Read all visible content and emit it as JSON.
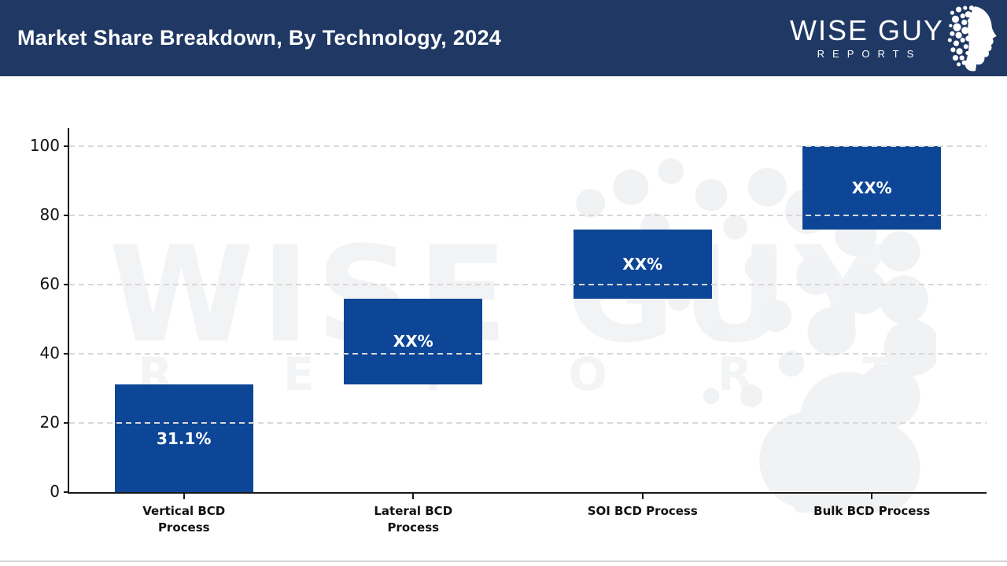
{
  "header": {
    "title": "Market Share Breakdown, By Technology, 2024",
    "bg_color": "#203864",
    "logo": {
      "line1": "WISE GUY",
      "line2": "REPORTS"
    }
  },
  "watermark": {
    "line1": "WISE GUY",
    "line2": "R E P O R T S"
  },
  "chart_data": {
    "type": "bar",
    "subtype": "waterfall (floating segment bars)",
    "title": "Market Share Breakdown, By Technology, 2024",
    "categories": [
      "Vertical BCD Process",
      "Lateral BCD Process",
      "SOI BCD Process",
      "Bulk BCD Process"
    ],
    "x_tick_display": [
      "Vertical BCD\nProcess",
      "Lateral BCD\nProcess",
      "SOI BCD Process",
      "Bulk BCD Process"
    ],
    "segments": [
      {
        "category": "Vertical BCD Process",
        "start": 0,
        "end": 31.1,
        "label": "31.1%"
      },
      {
        "category": "Lateral BCD Process",
        "start": 31.1,
        "end": 56,
        "label": "XX%"
      },
      {
        "category": "SOI BCD Process",
        "start": 56,
        "end": 76,
        "label": "XX%"
      },
      {
        "category": "Bulk BCD Process",
        "start": 76,
        "end": 100,
        "label": "XX%"
      }
    ],
    "ylim": [
      0,
      100
    ],
    "yticks": [
      0,
      20,
      40,
      60,
      80,
      100
    ],
    "xlabel": "",
    "ylabel": "",
    "grid": "horizontal dashed",
    "legend_position": "none",
    "bar_color": "#0d4696",
    "value_label_color": "#ffffff",
    "gridline_color": "#d8d8d8",
    "axis_color": "#1a1a1a"
  }
}
